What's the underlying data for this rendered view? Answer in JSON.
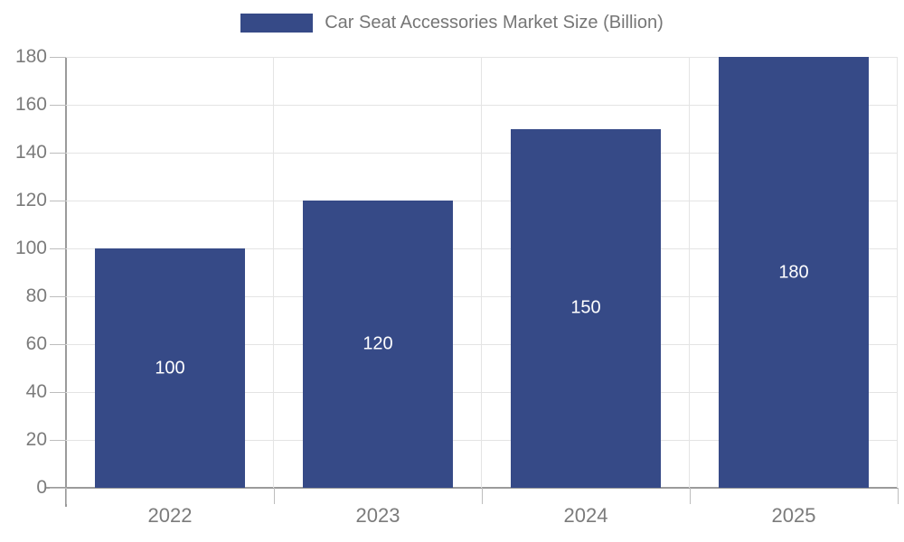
{
  "chart_data": {
    "type": "bar",
    "title": "Car Seat Accessories Market Size (Billion)",
    "categories": [
      "2022",
      "2023",
      "2024",
      "2025"
    ],
    "values": [
      100,
      120,
      150,
      180
    ],
    "bar_value_labels": [
      "100",
      "120",
      "150",
      "180"
    ],
    "xlabel": "",
    "ylabel": "",
    "ylim": [
      0,
      180
    ],
    "ytick_step": 20,
    "ytick_labels": [
      "0",
      "20",
      "40",
      "60",
      "80",
      "100",
      "120",
      "140",
      "160",
      "180"
    ],
    "grid": true,
    "legend_position": "top-center",
    "colors": {
      "bar": "#364a87",
      "gridline": "#e4e4e4",
      "axis_line": "#9b9b9b",
      "tick_mark": "#bdbdbd",
      "tick_label": "#7b7b7b",
      "bar_label": "#ffffff",
      "legend_text": "#767676",
      "background": "#ffffff"
    }
  }
}
